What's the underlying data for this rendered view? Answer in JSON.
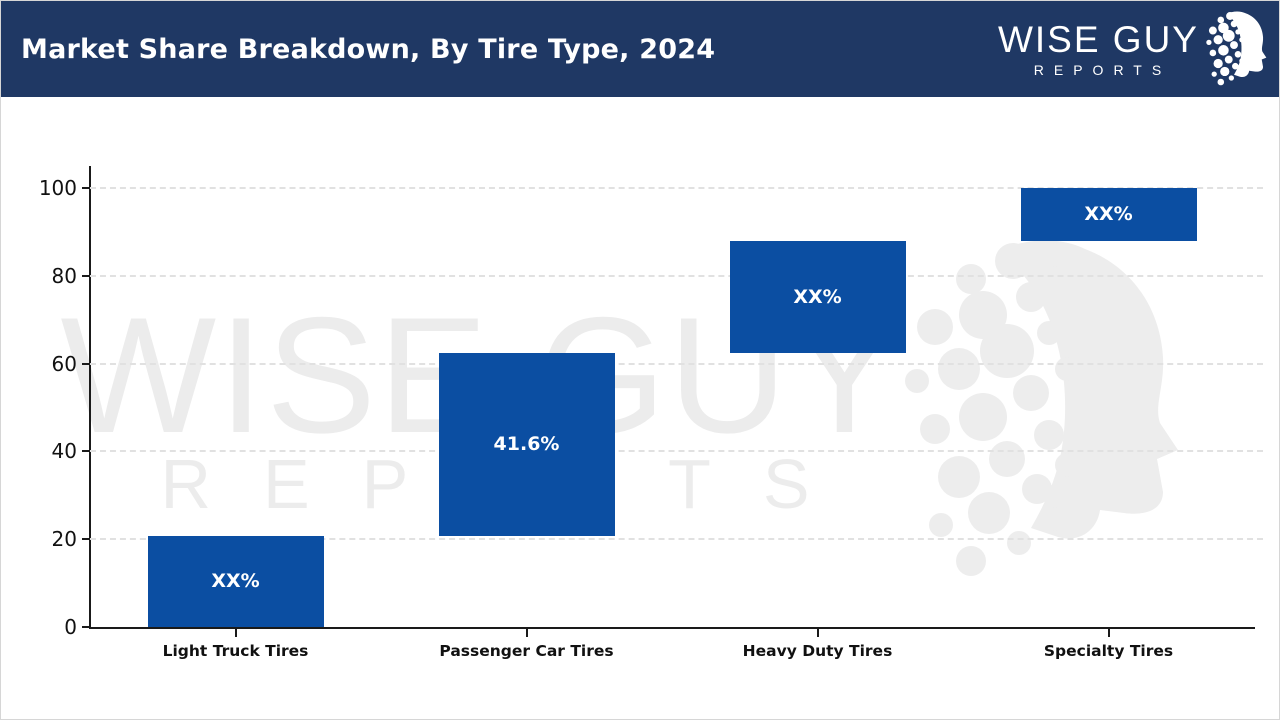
{
  "header": {
    "title": "Market Share Breakdown, By Tire Type, 2024",
    "logo_line1": "WISE GUY",
    "logo_line2": "REPORTS"
  },
  "watermark": {
    "line1": "WISE GUY",
    "line2": "REPORTS"
  },
  "chart_data": {
    "type": "bar",
    "subtype": "waterfall",
    "title": "Market Share Breakdown, By Tire Type, 2024",
    "categories": [
      "Light Truck Tires",
      "Passenger Car Tires",
      "Heavy Duty Tires",
      "Specialty Tires"
    ],
    "segments": [
      {
        "category": "Light Truck Tires",
        "start": 0,
        "end": 20.8,
        "label": "XX%"
      },
      {
        "category": "Passenger Car Tires",
        "start": 20.8,
        "end": 62.4,
        "label": "41.6%"
      },
      {
        "category": "Heavy Duty Tires",
        "start": 62.4,
        "end": 88,
        "label": "XX%"
      },
      {
        "category": "Specialty Tires",
        "start": 88,
        "end": 100,
        "label": "XX%"
      }
    ],
    "xlabel": "",
    "ylabel": "",
    "yticks": [
      0,
      20,
      40,
      60,
      80,
      100
    ],
    "ylim": [
      0,
      105
    ],
    "grid": "horizontal-dashed",
    "legend": "none",
    "bar_color": "#0b4ea2",
    "bar_label_color": "#ffffff"
  },
  "colors": {
    "header_bg": "#1f3864",
    "bar": "#0b4ea2",
    "grid": "#e1e1e1",
    "axis": "#1a1a1a",
    "watermark": "#ececec"
  }
}
